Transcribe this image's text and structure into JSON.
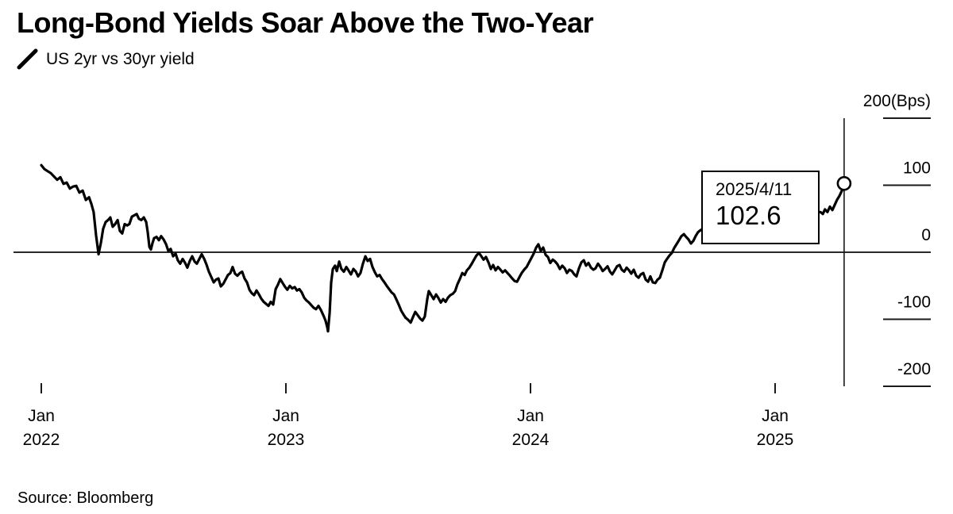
{
  "header": {
    "title": "Long-Bond Yields Soar Above the Two-Year"
  },
  "legend": {
    "series_label": "US 2yr vs 30yr yield",
    "swatch_icon": "diagonal-line-swatch",
    "swatch_color": "#000000"
  },
  "callout": {
    "date": "2025/4/11",
    "value": "102.6"
  },
  "footer": {
    "source": "Source: Bloomberg"
  },
  "colors": {
    "line": "#000000",
    "background": "#ffffff",
    "text": "#000000"
  },
  "chart_data": {
    "type": "line",
    "title": "Long-Bond Yields Soar Above the Two-Year",
    "series_name": "US 2yr vs 30yr yield",
    "ylabel_unit": "Bps",
    "grid": false,
    "legend_position": "top-left",
    "y_axis": {
      "range": [
        -250,
        220
      ],
      "ticks": [
        {
          "value": 200,
          "label": "200",
          "unit": "(Bps)"
        },
        {
          "value": 100,
          "label": "100"
        },
        {
          "value": 0,
          "label": "0",
          "is_zero_line": true
        },
        {
          "value": -100,
          "label": "-100"
        },
        {
          "value": -200,
          "label": "-200"
        }
      ]
    },
    "x_axis": {
      "ticks": [
        {
          "year": 2022,
          "month_label": "Jan",
          "year_label": "2022"
        },
        {
          "year": 2023,
          "month_label": "Jan",
          "year_label": "2023"
        },
        {
          "year": 2024,
          "month_label": "Jan",
          "year_label": "2024"
        },
        {
          "year": 2025,
          "month_label": "Jan",
          "year_label": "2025"
        }
      ]
    },
    "last_point": {
      "date": "2025/4/11",
      "value": 102.6
    },
    "points": [
      [
        2022.0,
        130
      ],
      [
        2022.013,
        124
      ],
      [
        2022.026,
        121
      ],
      [
        2022.039,
        118
      ],
      [
        2022.052,
        113
      ],
      [
        2022.065,
        108
      ],
      [
        2022.078,
        112
      ],
      [
        2022.091,
        102
      ],
      [
        2022.104,
        104
      ],
      [
        2022.117,
        95
      ],
      [
        2022.13,
        98
      ],
      [
        2022.143,
        99
      ],
      [
        2022.156,
        89
      ],
      [
        2022.169,
        92
      ],
      [
        2022.182,
        78
      ],
      [
        2022.195,
        82
      ],
      [
        2022.205,
        72
      ],
      [
        2022.214,
        60
      ],
      [
        2022.224,
        25
      ],
      [
        2022.234,
        -3
      ],
      [
        2022.244,
        15
      ],
      [
        2022.253,
        35
      ],
      [
        2022.263,
        45
      ],
      [
        2022.273,
        48
      ],
      [
        2022.282,
        52
      ],
      [
        2022.292,
        38
      ],
      [
        2022.302,
        42
      ],
      [
        2022.312,
        48
      ],
      [
        2022.321,
        32
      ],
      [
        2022.331,
        28
      ],
      [
        2022.341,
        42
      ],
      [
        2022.351,
        40
      ],
      [
        2022.36,
        42
      ],
      [
        2022.37,
        53
      ],
      [
        2022.38,
        55
      ],
      [
        2022.39,
        57
      ],
      [
        2022.399,
        50
      ],
      [
        2022.409,
        48
      ],
      [
        2022.419,
        52
      ],
      [
        2022.429,
        45
      ],
      [
        2022.435,
        30
      ],
      [
        2022.442,
        8
      ],
      [
        2022.448,
        4
      ],
      [
        2022.455,
        14
      ],
      [
        2022.461,
        21
      ],
      [
        2022.471,
        23
      ],
      [
        2022.481,
        18
      ],
      [
        2022.49,
        24
      ],
      [
        2022.5,
        19
      ],
      [
        2022.51,
        12
      ],
      [
        2022.519,
        2
      ],
      [
        2022.529,
        5
      ],
      [
        2022.539,
        -6
      ],
      [
        2022.549,
        -2
      ],
      [
        2022.558,
        -12
      ],
      [
        2022.568,
        -17
      ],
      [
        2022.578,
        -10
      ],
      [
        2022.588,
        -16
      ],
      [
        2022.597,
        -23
      ],
      [
        2022.607,
        -13
      ],
      [
        2022.617,
        -6
      ],
      [
        2022.627,
        -14
      ],
      [
        2022.636,
        -17
      ],
      [
        2022.646,
        -10
      ],
      [
        2022.656,
        -3
      ],
      [
        2022.666,
        -10
      ],
      [
        2022.675,
        -18
      ],
      [
        2022.685,
        -29
      ],
      [
        2022.695,
        -37
      ],
      [
        2022.705,
        -45
      ],
      [
        2022.714,
        -41
      ],
      [
        2022.724,
        -39
      ],
      [
        2022.734,
        -51
      ],
      [
        2022.744,
        -47
      ],
      [
        2022.753,
        -41
      ],
      [
        2022.763,
        -34
      ],
      [
        2022.773,
        -31
      ],
      [
        2022.782,
        -22
      ],
      [
        2022.792,
        -32
      ],
      [
        2022.802,
        -35
      ],
      [
        2022.812,
        -31
      ],
      [
        2022.821,
        -29
      ],
      [
        2022.831,
        -39
      ],
      [
        2022.841,
        -45
      ],
      [
        2022.851,
        -56
      ],
      [
        2022.86,
        -61
      ],
      [
        2022.87,
        -64
      ],
      [
        2022.88,
        -57
      ],
      [
        2022.89,
        -63
      ],
      [
        2022.899,
        -69
      ],
      [
        2022.909,
        -74
      ],
      [
        2022.919,
        -77
      ],
      [
        2022.929,
        -80
      ],
      [
        2022.938,
        -74
      ],
      [
        2022.948,
        -78
      ],
      [
        2022.958,
        -55
      ],
      [
        2022.968,
        -48
      ],
      [
        2022.977,
        -40
      ],
      [
        2022.987,
        -46
      ],
      [
        2022.997,
        -52
      ],
      [
        2023.006,
        -56
      ],
      [
        2023.016,
        -50
      ],
      [
        2023.026,
        -54
      ],
      [
        2023.036,
        -52
      ],
      [
        2023.045,
        -57
      ],
      [
        2023.055,
        -55
      ],
      [
        2023.065,
        -60
      ],
      [
        2023.075,
        -68
      ],
      [
        2023.084,
        -72
      ],
      [
        2023.094,
        -75
      ],
      [
        2023.104,
        -79
      ],
      [
        2023.114,
        -83
      ],
      [
        2023.123,
        -85
      ],
      [
        2023.133,
        -80
      ],
      [
        2023.143,
        -86
      ],
      [
        2023.153,
        -94
      ],
      [
        2023.162,
        -102
      ],
      [
        2023.169,
        -112
      ],
      [
        2023.172,
        -118
      ],
      [
        2023.179,
        -90
      ],
      [
        2023.185,
        -45
      ],
      [
        2023.192,
        -25
      ],
      [
        2023.201,
        -20
      ],
      [
        2023.208,
        -28
      ],
      [
        2023.218,
        -14
      ],
      [
        2023.227,
        -25
      ],
      [
        2023.237,
        -29
      ],
      [
        2023.247,
        -22
      ],
      [
        2023.256,
        -27
      ],
      [
        2023.266,
        -33
      ],
      [
        2023.276,
        -25
      ],
      [
        2023.286,
        -29
      ],
      [
        2023.295,
        -36
      ],
      [
        2023.305,
        -31
      ],
      [
        2023.315,
        -17
      ],
      [
        2023.325,
        -6
      ],
      [
        2023.334,
        -13
      ],
      [
        2023.344,
        -10
      ],
      [
        2023.354,
        -22
      ],
      [
        2023.364,
        -30
      ],
      [
        2023.373,
        -36
      ],
      [
        2023.383,
        -34
      ],
      [
        2023.393,
        -40
      ],
      [
        2023.403,
        -45
      ],
      [
        2023.412,
        -50
      ],
      [
        2023.422,
        -55
      ],
      [
        2023.432,
        -60
      ],
      [
        2023.442,
        -63
      ],
      [
        2023.451,
        -70
      ],
      [
        2023.461,
        -78
      ],
      [
        2023.471,
        -87
      ],
      [
        2023.481,
        -93
      ],
      [
        2023.49,
        -98
      ],
      [
        2023.5,
        -101
      ],
      [
        2023.51,
        -105
      ],
      [
        2023.519,
        -97
      ],
      [
        2023.529,
        -89
      ],
      [
        2023.539,
        -94
      ],
      [
        2023.549,
        -99
      ],
      [
        2023.558,
        -102
      ],
      [
        2023.568,
        -96
      ],
      [
        2023.578,
        -70
      ],
      [
        2023.584,
        -58
      ],
      [
        2023.594,
        -64
      ],
      [
        2023.604,
        -70
      ],
      [
        2023.614,
        -63
      ],
      [
        2023.623,
        -68
      ],
      [
        2023.633,
        -75
      ],
      [
        2023.643,
        -70
      ],
      [
        2023.653,
        -74
      ],
      [
        2023.662,
        -68
      ],
      [
        2023.672,
        -64
      ],
      [
        2023.682,
        -62
      ],
      [
        2023.692,
        -58
      ],
      [
        2023.701,
        -48
      ],
      [
        2023.711,
        -40
      ],
      [
        2023.721,
        -31
      ],
      [
        2023.731,
        -34
      ],
      [
        2023.74,
        -27
      ],
      [
        2023.75,
        -23
      ],
      [
        2023.76,
        -17
      ],
      [
        2023.769,
        -11
      ],
      [
        2023.779,
        -5
      ],
      [
        2023.789,
        -1
      ],
      [
        2023.799,
        -6
      ],
      [
        2023.808,
        -11
      ],
      [
        2023.818,
        -7
      ],
      [
        2023.828,
        -15
      ],
      [
        2023.838,
        -25
      ],
      [
        2023.847,
        -19
      ],
      [
        2023.857,
        -27
      ],
      [
        2023.867,
        -22
      ],
      [
        2023.877,
        -26
      ],
      [
        2023.886,
        -30
      ],
      [
        2023.896,
        -27
      ],
      [
        2023.906,
        -31
      ],
      [
        2023.916,
        -35
      ],
      [
        2023.925,
        -39
      ],
      [
        2023.935,
        -43
      ],
      [
        2023.945,
        -44
      ],
      [
        2023.955,
        -37
      ],
      [
        2023.964,
        -31
      ],
      [
        2023.974,
        -26
      ],
      [
        2023.984,
        -22
      ],
      [
        2023.994,
        -15
      ],
      [
        2024.003,
        -9
      ],
      [
        2024.013,
        -2
      ],
      [
        2024.023,
        7
      ],
      [
        2024.032,
        12
      ],
      [
        2024.042,
        2
      ],
      [
        2024.052,
        7
      ],
      [
        2024.062,
        -4
      ],
      [
        2024.071,
        -7
      ],
      [
        2024.081,
        -16
      ],
      [
        2024.091,
        -11
      ],
      [
        2024.101,
        -14
      ],
      [
        2024.11,
        -18
      ],
      [
        2024.12,
        -25
      ],
      [
        2024.13,
        -20
      ],
      [
        2024.14,
        -24
      ],
      [
        2024.149,
        -31
      ],
      [
        2024.159,
        -26
      ],
      [
        2024.169,
        -28
      ],
      [
        2024.179,
        -33
      ],
      [
        2024.188,
        -36
      ],
      [
        2024.198,
        -24
      ],
      [
        2024.208,
        -15
      ],
      [
        2024.218,
        -12
      ],
      [
        2024.227,
        -20
      ],
      [
        2024.237,
        -16
      ],
      [
        2024.247,
        -23
      ],
      [
        2024.257,
        -26
      ],
      [
        2024.266,
        -24
      ],
      [
        2024.276,
        -17
      ],
      [
        2024.286,
        -22
      ],
      [
        2024.295,
        -28
      ],
      [
        2024.305,
        -25
      ],
      [
        2024.315,
        -21
      ],
      [
        2024.325,
        -29
      ],
      [
        2024.334,
        -33
      ],
      [
        2024.344,
        -27
      ],
      [
        2024.354,
        -21
      ],
      [
        2024.364,
        -19
      ],
      [
        2024.373,
        -26
      ],
      [
        2024.383,
        -29
      ],
      [
        2024.393,
        -23
      ],
      [
        2024.403,
        -27
      ],
      [
        2024.412,
        -32
      ],
      [
        2024.422,
        -26
      ],
      [
        2024.432,
        -35
      ],
      [
        2024.442,
        -38
      ],
      [
        2024.451,
        -33
      ],
      [
        2024.461,
        -31
      ],
      [
        2024.471,
        -41
      ],
      [
        2024.481,
        -44
      ],
      [
        2024.49,
        -36
      ],
      [
        2024.5,
        -45
      ],
      [
        2024.51,
        -46
      ],
      [
        2024.519,
        -41
      ],
      [
        2024.529,
        -38
      ],
      [
        2024.539,
        -27
      ],
      [
        2024.549,
        -15
      ],
      [
        2024.558,
        -10
      ],
      [
        2024.568,
        -5
      ],
      [
        2024.578,
        -1
      ],
      [
        2024.587,
        6
      ],
      [
        2024.597,
        12
      ],
      [
        2024.607,
        18
      ],
      [
        2024.617,
        24
      ],
      [
        2024.627,
        27
      ],
      [
        2024.636,
        23
      ],
      [
        2024.646,
        19
      ],
      [
        2024.656,
        13
      ],
      [
        2024.666,
        17
      ],
      [
        2024.675,
        24
      ],
      [
        2024.685,
        30
      ],
      [
        2024.695,
        33
      ],
      [
        2024.708,
        35
      ],
      [
        2024.721,
        31
      ],
      [
        2024.734,
        36
      ],
      [
        2024.747,
        33
      ],
      [
        2024.76,
        39
      ],
      [
        2024.773,
        36
      ],
      [
        2024.786,
        42
      ],
      [
        2024.799,
        38
      ],
      [
        2024.812,
        44
      ],
      [
        2024.825,
        40
      ],
      [
        2024.838,
        46
      ],
      [
        2024.851,
        42
      ],
      [
        2024.864,
        48
      ],
      [
        2024.877,
        44
      ],
      [
        2024.89,
        50
      ],
      [
        2024.903,
        46
      ],
      [
        2024.916,
        52
      ],
      [
        2024.929,
        47
      ],
      [
        2024.942,
        53
      ],
      [
        2024.955,
        49
      ],
      [
        2024.968,
        55
      ],
      [
        2024.981,
        51
      ],
      [
        2024.994,
        57
      ],
      [
        2025.006,
        53
      ],
      [
        2025.019,
        58
      ],
      [
        2025.032,
        54
      ],
      [
        2025.045,
        60
      ],
      [
        2025.058,
        56
      ],
      [
        2025.071,
        61
      ],
      [
        2025.084,
        57
      ],
      [
        2025.097,
        62
      ],
      [
        2025.11,
        58
      ],
      [
        2025.123,
        63
      ],
      [
        2025.136,
        59
      ],
      [
        2025.149,
        62
      ],
      [
        2025.162,
        58
      ],
      [
        2025.175,
        60
      ],
      [
        2025.185,
        60
      ],
      [
        2025.195,
        57
      ],
      [
        2025.204,
        64
      ],
      [
        2025.214,
        60
      ],
      [
        2025.224,
        68
      ],
      [
        2025.234,
        63
      ],
      [
        2025.243,
        70
      ],
      [
        2025.253,
        78
      ],
      [
        2025.263,
        84
      ],
      [
        2025.273,
        92
      ],
      [
        2025.282,
        102.6
      ]
    ]
  }
}
